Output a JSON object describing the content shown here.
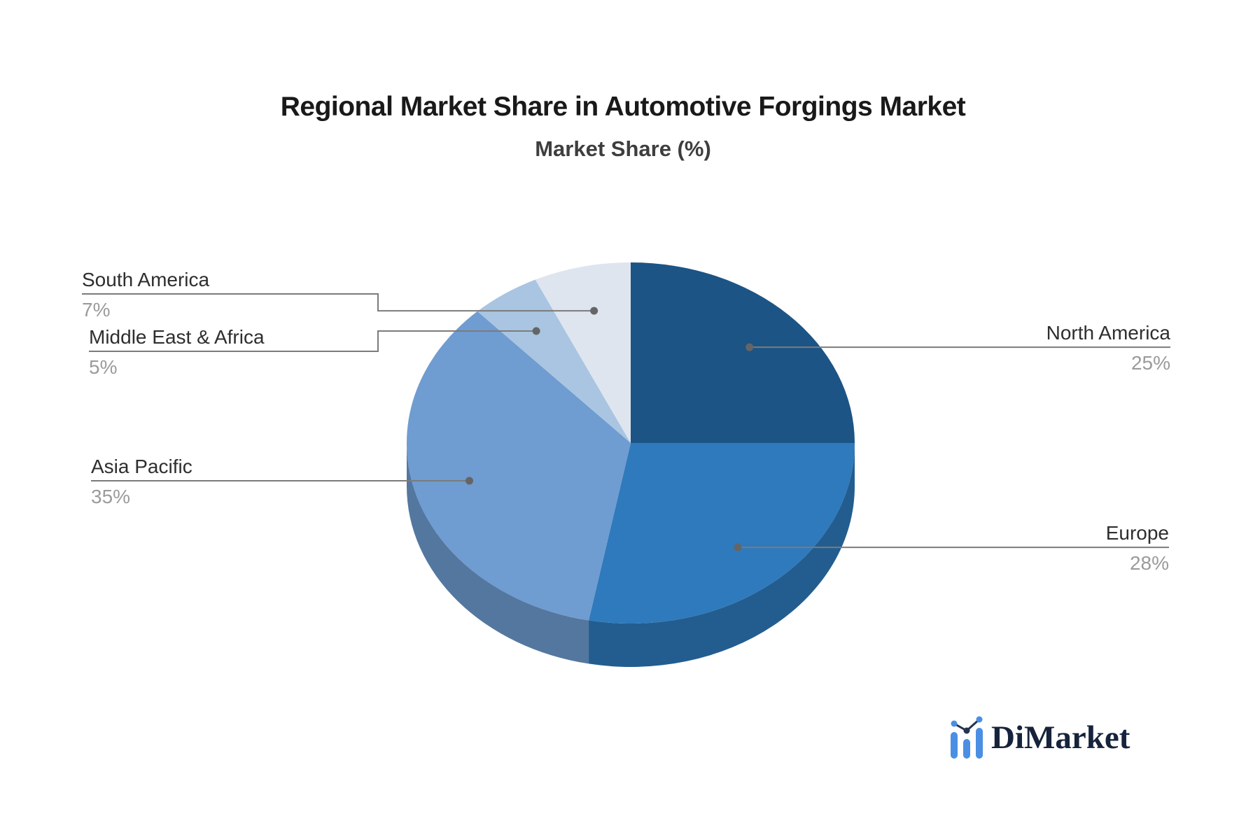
{
  "chart_data": {
    "type": "pie",
    "title": "Regional Market Share in Automotive Forgings Market",
    "subtitle": "Market Share (%)",
    "unit": "%",
    "start_angle_deg": 0,
    "direction": "clockwise",
    "effect_3d": true,
    "legend_position": "none",
    "slices": [
      {
        "label": "North America",
        "value": 25,
        "pct_label": "25%",
        "color": "#1c5485",
        "label_side": "right"
      },
      {
        "label": "Europe",
        "value": 28,
        "pct_label": "28%",
        "color": "#2e7abc",
        "label_side": "right"
      },
      {
        "label": "Asia Pacific",
        "value": 35,
        "pct_label": "35%",
        "color": "#6f9cd1",
        "label_side": "left"
      },
      {
        "label": "Middle East & Africa",
        "value": 5,
        "pct_label": "5%",
        "color": "#a9c5e1",
        "label_side": "left"
      },
      {
        "label": "South America",
        "value": 7,
        "pct_label": "7%",
        "color": "#dfe5ef",
        "label_side": "left"
      }
    ],
    "label_text_color": "#2e2e2e",
    "pct_text_color": "#9b9b9b",
    "leader_line_color": "#7b7b7b"
  },
  "logo": {
    "text": "DiMarket",
    "icon": "bar-line-chart-icon",
    "icon_blue": "#4a8fe3",
    "icon_navy": "#24344f"
  }
}
